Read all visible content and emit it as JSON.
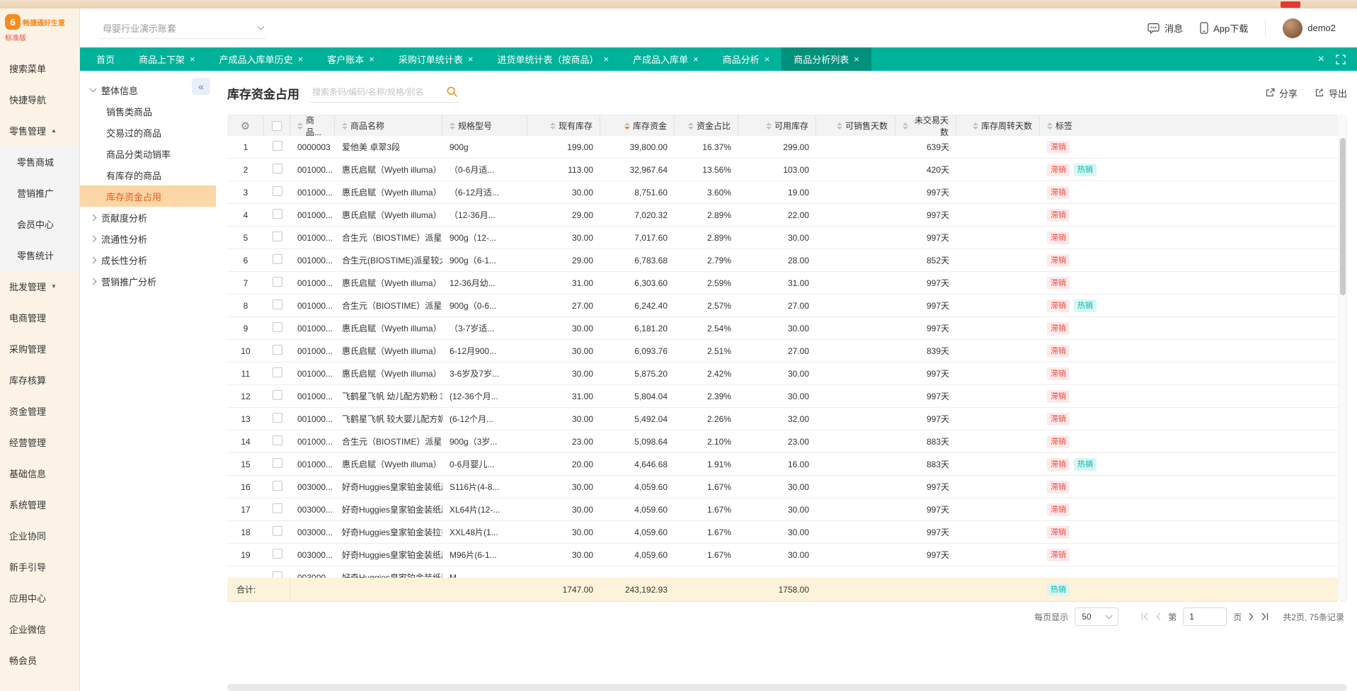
{
  "theme": {
    "teal": "#00b29a",
    "teal_dark": "#00917c",
    "orange": "#f0851c",
    "sidebar_bg": "#fcf3e6",
    "selected_tree_bg": "#fbd6a6",
    "selected_tree_text": "#eb5a1e",
    "tag_stale_text": "#f2453d",
    "tag_stale_bg": "#fdeaea",
    "tag_hot_text": "#00b8a9",
    "tag_hot_bg": "#dcf5f2",
    "summary_bg": "#fdf3da",
    "top_badge_color": "#e53935"
  },
  "icons": {
    "gear": "⚙",
    "close": "×",
    "caret_up": "▲",
    "caret_down": "▼",
    "collapse": "«"
  },
  "brand": {
    "logo_glyph": "6",
    "name": "畅捷通好生意",
    "edition": "标准版"
  },
  "account_bar": {
    "account_selector": "母婴行业演示账套",
    "messages_label": "消息",
    "app_download_label": "App下载",
    "username": "demo2"
  },
  "sidebar": {
    "items": [
      {
        "label": "搜索菜单"
      },
      {
        "label": "快捷导航"
      },
      {
        "label": "零售管理",
        "caret": "up"
      },
      {
        "label": "零售商城",
        "sub": true
      },
      {
        "label": "营销推广",
        "sub": true
      },
      {
        "label": "会员中心",
        "sub": true
      },
      {
        "label": "零售统计",
        "sub": true
      },
      {
        "label": "批发管理",
        "caret": "down"
      },
      {
        "label": "电商管理"
      },
      {
        "label": "采购管理"
      },
      {
        "label": "库存核算"
      },
      {
        "label": "资金管理"
      },
      {
        "label": "经营管理"
      },
      {
        "label": "基础信息"
      },
      {
        "label": "系统管理"
      },
      {
        "label": "企业协同"
      },
      {
        "label": "新手引导"
      },
      {
        "label": "应用中心"
      },
      {
        "label": "企业微信"
      },
      {
        "label": "畅会员"
      }
    ]
  },
  "tabs": {
    "items": [
      {
        "label": "首页",
        "closable": false
      },
      {
        "label": "商品上下架",
        "closable": true
      },
      {
        "label": "产成品入库单历史",
        "closable": true
      },
      {
        "label": "客户账本",
        "closable": true
      },
      {
        "label": "采购订单统计表",
        "closable": true
      },
      {
        "label": "进货单统计表（按商品）",
        "closable": true
      },
      {
        "label": "产成品入库单",
        "closable": true
      },
      {
        "label": "商品分析",
        "closable": true
      },
      {
        "label": "商品分析列表",
        "closable": true,
        "active": true
      }
    ]
  },
  "tree": {
    "collapse_icon": "«",
    "groups": [
      {
        "label": "整体信息",
        "expanded": true,
        "children": [
          "销售类商品",
          "交易过的商品",
          "商品分类动销率",
          "有库存的商品",
          "库存资金占用"
        ],
        "selected_child": "库存资金占用"
      },
      {
        "label": "贡献度分析",
        "expanded": false
      },
      {
        "label": "流通性分析",
        "expanded": false
      },
      {
        "label": "成长性分析",
        "expanded": false
      },
      {
        "label": "营销推广分析",
        "expanded": false
      }
    ]
  },
  "content": {
    "title": "库存资金占用",
    "search_placeholder": "搜索条码/编码/名称/规格/别名",
    "share_label": "分享",
    "export_label": "导出"
  },
  "table": {
    "columns": [
      {
        "key": "settings",
        "type": "gear"
      },
      {
        "key": "select",
        "type": "checkbox"
      },
      {
        "key": "code",
        "label": "商品...",
        "sortable": true
      },
      {
        "key": "name",
        "label": "商品名称",
        "sortable": true
      },
      {
        "key": "spec",
        "label": "规格型号",
        "sortable": true
      },
      {
        "key": "qty",
        "label": "现有库存",
        "sortable": true,
        "align": "right"
      },
      {
        "key": "fund",
        "label": "库存资金",
        "sortable": true,
        "sort": "desc",
        "align": "right"
      },
      {
        "key": "ratio",
        "label": "资金占比",
        "sortable": true,
        "align": "right"
      },
      {
        "key": "available",
        "label": "可用库存",
        "sortable": true,
        "align": "right"
      },
      {
        "key": "sellable_days",
        "label": "可销售天数",
        "sortable": true,
        "align": "right"
      },
      {
        "key": "idle_days",
        "label": "未交易天数",
        "sortable": true,
        "align": "right"
      },
      {
        "key": "turnover_days",
        "label": "库存周转天数",
        "sortable": true,
        "align": "right"
      },
      {
        "key": "tags",
        "label": "标签",
        "sortable": true
      }
    ],
    "rows": [
      {
        "num": "1",
        "code": "0000003",
        "name": "爱他美 卓翠3段",
        "spec": "900g",
        "qty": "199.00",
        "fund": "39,800.00",
        "ratio": "16.37%",
        "available": "299.00",
        "sellable_days": "",
        "idle_days": "639天",
        "turnover_days": "",
        "tags": [
          {
            "label": "滞销",
            "type": "stale"
          }
        ]
      },
      {
        "num": "2",
        "code": "001000...",
        "name": "惠氏启赋（Wyeth illuma）",
        "spec": "（0-6月适...",
        "qty": "113.00",
        "fund": "32,967.64",
        "ratio": "13.56%",
        "available": "103.00",
        "sellable_days": "",
        "idle_days": "420天",
        "turnover_days": "",
        "tags": [
          {
            "label": "滞销",
            "type": "stale"
          },
          {
            "label": "热销",
            "type": "hot"
          }
        ]
      },
      {
        "num": "3",
        "code": "001000...",
        "name": "惠氏启赋（Wyeth illuma）",
        "spec": "（6-12月适...",
        "qty": "30.00",
        "fund": "8,751.60",
        "ratio": "3.60%",
        "available": "19.00",
        "sellable_days": "",
        "idle_days": "997天",
        "turnover_days": "",
        "tags": [
          {
            "label": "滞销",
            "type": "stale"
          }
        ]
      },
      {
        "num": "4",
        "code": "001000...",
        "name": "惠氏启赋（Wyeth illuma）",
        "spec": "（12-36月...",
        "qty": "29.00",
        "fund": "7,020.32",
        "ratio": "2.89%",
        "available": "22.00",
        "sellable_days": "",
        "idle_days": "997天",
        "turnover_days": "",
        "tags": [
          {
            "label": "滞销",
            "type": "stale"
          }
        ]
      },
      {
        "num": "5",
        "code": "001000...",
        "name": "合生元（BIOSTIME）派星红",
        "spec": "900g（12-...",
        "qty": "30.00",
        "fund": "7,017.60",
        "ratio": "2.89%",
        "available": "30.00",
        "sellable_days": "",
        "idle_days": "997天",
        "turnover_days": "",
        "tags": [
          {
            "label": "滞销",
            "type": "stale"
          }
        ]
      },
      {
        "num": "6",
        "code": "001000...",
        "name": "合生元(BIOSTIME)派星较大",
        "spec": "900g（6-1...",
        "qty": "29.00",
        "fund": "6,783.68",
        "ratio": "2.79%",
        "available": "28.00",
        "sellable_days": "",
        "idle_days": "852天",
        "turnover_days": "",
        "tags": [
          {
            "label": "滞销",
            "type": "stale"
          }
        ]
      },
      {
        "num": "7",
        "code": "001000...",
        "name": "惠氏启赋（Wyeth illuma）",
        "spec": "12-36月幼...",
        "qty": "31.00",
        "fund": "6,303.60",
        "ratio": "2.59%",
        "available": "31.00",
        "sellable_days": "",
        "idle_days": "997天",
        "turnover_days": "",
        "tags": [
          {
            "label": "滞销",
            "type": "stale"
          }
        ]
      },
      {
        "num": "8",
        "code": "001000...",
        "name": "合生元（BIOSTIME）派星",
        "spec": "900g（0-6...",
        "qty": "27.00",
        "fund": "6,242.40",
        "ratio": "2.57%",
        "available": "27.00",
        "sellable_days": "",
        "idle_days": "997天",
        "turnover_days": "",
        "tags": [
          {
            "label": "滞销",
            "type": "stale"
          },
          {
            "label": "热销",
            "type": "hot"
          }
        ]
      },
      {
        "num": "9",
        "code": "001000...",
        "name": "惠氏启赋（Wyeth illuma）",
        "spec": "（3-7岁适...",
        "qty": "30.00",
        "fund": "6,181.20",
        "ratio": "2.54%",
        "available": "30.00",
        "sellable_days": "",
        "idle_days": "997天",
        "turnover_days": "",
        "tags": [
          {
            "label": "滞销",
            "type": "stale"
          }
        ]
      },
      {
        "num": "10",
        "code": "001000...",
        "name": "惠氏启赋（Wyeth illuma）",
        "spec": "6-12月900...",
        "qty": "30.00",
        "fund": "6,093.76",
        "ratio": "2.51%",
        "available": "27.00",
        "sellable_days": "",
        "idle_days": "839天",
        "turnover_days": "",
        "tags": [
          {
            "label": "滞销",
            "type": "stale"
          }
        ]
      },
      {
        "num": "11",
        "code": "001000...",
        "name": "惠氏启赋（Wyeth illuma）",
        "spec": "3-6岁及7岁...",
        "qty": "30.00",
        "fund": "5,875.20",
        "ratio": "2.42%",
        "available": "30.00",
        "sellable_days": "",
        "idle_days": "997天",
        "turnover_days": "",
        "tags": [
          {
            "label": "滞销",
            "type": "stale"
          }
        ]
      },
      {
        "num": "12",
        "code": "001000...",
        "name": "飞鹤星飞帆 幼儿配方奶粉 3",
        "spec": "(12-36个月...",
        "qty": "31.00",
        "fund": "5,804.04",
        "ratio": "2.39%",
        "available": "30.00",
        "sellable_days": "",
        "idle_days": "997天",
        "turnover_days": "",
        "tags": [
          {
            "label": "滞销",
            "type": "stale"
          }
        ]
      },
      {
        "num": "13",
        "code": "001000...",
        "name": "飞鹤星飞帆 较大婴儿配方奶",
        "spec": "(6-12个月...",
        "qty": "30.00",
        "fund": "5,492.04",
        "ratio": "2.26%",
        "available": "32.00",
        "sellable_days": "",
        "idle_days": "997天",
        "turnover_days": "",
        "tags": [
          {
            "label": "滞销",
            "type": "stale"
          }
        ]
      },
      {
        "num": "14",
        "code": "001000...",
        "name": "合生元（BIOSTIME）派星",
        "spec": "900g（3岁...",
        "qty": "23.00",
        "fund": "5,098.64",
        "ratio": "2.10%",
        "available": "23.00",
        "sellable_days": "",
        "idle_days": "883天",
        "turnover_days": "",
        "tags": [
          {
            "label": "滞销",
            "type": "stale"
          }
        ]
      },
      {
        "num": "15",
        "code": "001000...",
        "name": "惠氏启赋（Wyeth illuma）",
        "spec": "0-6月婴儿...",
        "qty": "20.00",
        "fund": "4,646.68",
        "ratio": "1.91%",
        "available": "16.00",
        "sellable_days": "",
        "idle_days": "883天",
        "turnover_days": "",
        "tags": [
          {
            "label": "滞销",
            "type": "stale"
          },
          {
            "label": "热销",
            "type": "hot"
          }
        ]
      },
      {
        "num": "16",
        "code": "003000...",
        "name": "好奇Huggies皇家铂金装纸尿",
        "spec": "S116片(4-8...",
        "qty": "30.00",
        "fund": "4,059.60",
        "ratio": "1.67%",
        "available": "30.00",
        "sellable_days": "",
        "idle_days": "997天",
        "turnover_days": "",
        "tags": [
          {
            "label": "滞销",
            "type": "stale"
          }
        ]
      },
      {
        "num": "17",
        "code": "003000...",
        "name": "好奇Huggies皇家铂金装纸尿",
        "spec": "XL64片(12-...",
        "qty": "30.00",
        "fund": "4,059.60",
        "ratio": "1.67%",
        "available": "30.00",
        "sellable_days": "",
        "idle_days": "997天",
        "turnover_days": "",
        "tags": [
          {
            "label": "滞销",
            "type": "stale"
          }
        ]
      },
      {
        "num": "18",
        "code": "003000...",
        "name": "好奇Huggies皇家铂金装拉拉",
        "spec": "XXL48片(1...",
        "qty": "30.00",
        "fund": "4,059.60",
        "ratio": "1.67%",
        "available": "30.00",
        "sellable_days": "",
        "idle_days": "997天",
        "turnover_days": "",
        "tags": [
          {
            "label": "滞销",
            "type": "stale"
          }
        ]
      },
      {
        "num": "19",
        "code": "003000...",
        "name": "好奇Huggies皇家铂金装纸尿",
        "spec": "M96片(6-1...",
        "qty": "30.00",
        "fund": "4,059.60",
        "ratio": "1.67%",
        "available": "30.00",
        "sellable_days": "",
        "idle_days": "997天",
        "turnover_days": "",
        "tags": [
          {
            "label": "滞销",
            "type": "stale"
          }
        ]
      }
    ],
    "partial_row": {
      "num": "",
      "code": "003000...",
      "name": "好奇Huggies皇家铂金装纸尿",
      "spec": "M...",
      "qty": "",
      "fund": "",
      "ratio": "",
      "available": "",
      "sellable_days": "",
      "idle_days": "",
      "turnover_days": "",
      "tags": []
    },
    "summary": {
      "label": "合计:",
      "qty": "1747.00",
      "fund": "243,192.93",
      "available": "1758.00",
      "tag": "热销"
    }
  },
  "pagination": {
    "page_size_label": "每页显示",
    "page_size": "50",
    "page_prefix": "第",
    "page_value": "1",
    "page_suffix": "页",
    "total_label": "共2页, 75条记录"
  }
}
